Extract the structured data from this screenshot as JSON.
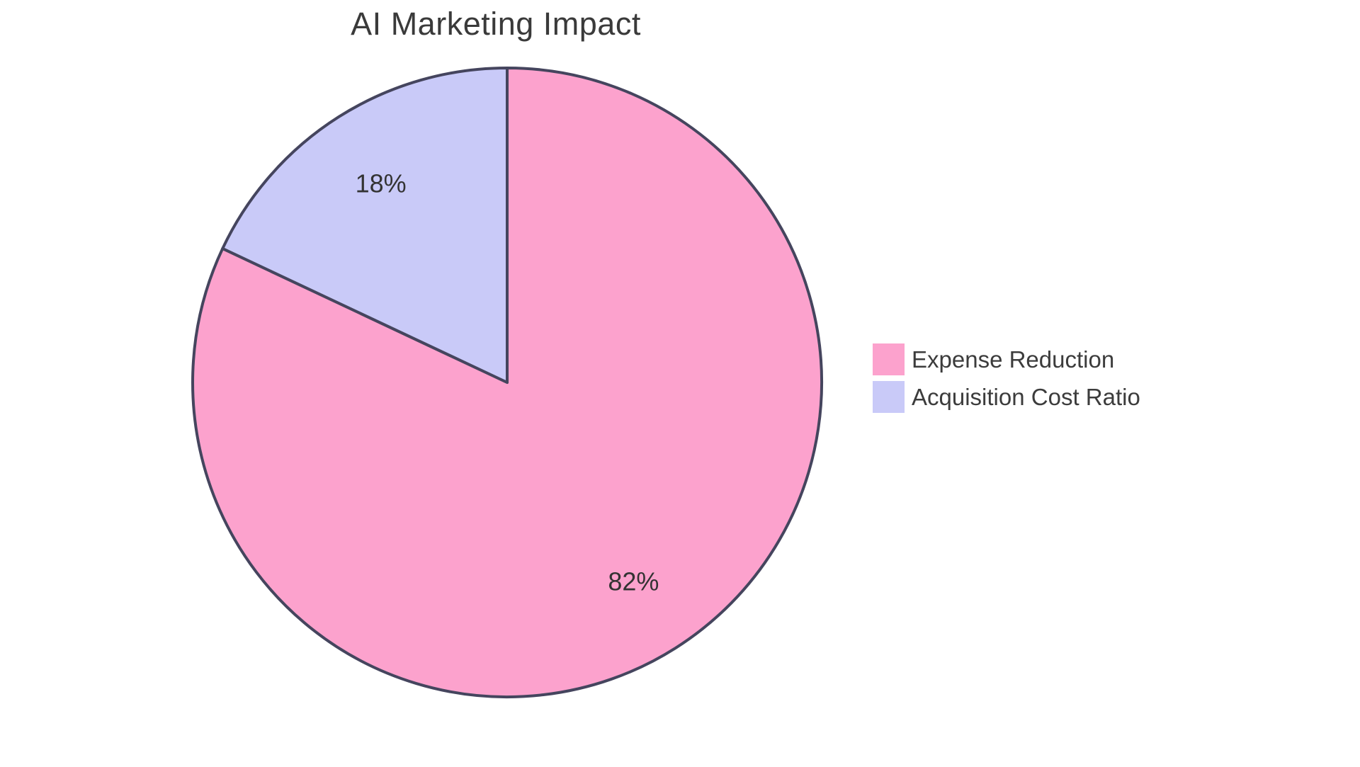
{
  "title": "AI Marketing Impact",
  "chart_data": {
    "type": "pie",
    "title": "AI Marketing Impact",
    "labels": [
      "Expense Reduction",
      "Acquisition Cost Ratio"
    ],
    "values": [
      82,
      18
    ],
    "value_labels": [
      "82%",
      "18%"
    ],
    "colors": [
      "#FCA2CD",
      "#C9CAF8"
    ],
    "slice_border_color": "#45455E",
    "slice_border_width": 4,
    "start_angle_deg": 0,
    "direction": "clockwise",
    "label_color": "#333333",
    "label_radius_fraction": 0.75,
    "legend_position": "right"
  },
  "legend": {
    "items": [
      {
        "label": "Expense Reduction",
        "color": "#FCA2CD"
      },
      {
        "label": "Acquisition Cost Ratio",
        "color": "#C9CAF8"
      }
    ]
  }
}
